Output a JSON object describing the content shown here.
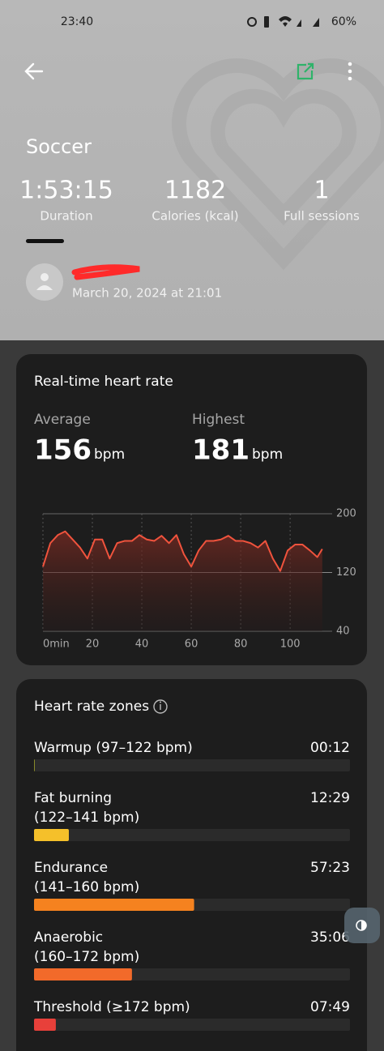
{
  "status_bar": {
    "time": "23:40",
    "battery": "60%"
  },
  "header": {
    "title": "Soccer"
  },
  "stats": [
    {
      "value": "1:53:15",
      "label": "Duration"
    },
    {
      "value": "1182",
      "label": "Calories (kcal)"
    },
    {
      "value": "1",
      "label": "Full sessions"
    }
  ],
  "session": {
    "date": "March 20, 2024 at 21:01"
  },
  "heart_rate": {
    "average": {
      "label": "Average",
      "value": 156,
      "unit": "bpm"
    },
    "highest": {
      "label": "Highest",
      "value": 181,
      "unit": "bpm"
    }
  },
  "chart_data": {
    "type": "line",
    "title": "Real-time heart rate",
    "x": [
      0,
      3,
      6,
      9,
      12,
      15,
      18,
      21,
      24,
      27,
      30,
      33,
      36,
      39,
      42,
      45,
      48,
      51,
      54,
      57,
      60,
      63,
      66,
      69,
      72,
      75,
      78,
      81,
      84,
      87,
      90,
      93,
      96,
      99,
      102,
      105,
      108,
      111,
      113
    ],
    "series": [
      {
        "color": "#f0533d",
        "values": [
          128,
          160,
          171,
          176,
          165,
          154,
          139,
          165,
          165,
          139,
          160,
          163,
          163,
          171,
          165,
          163,
          170,
          160,
          171,
          145,
          128,
          150,
          163,
          163,
          165,
          170,
          163,
          163,
          160,
          154,
          163,
          139,
          122,
          150,
          158,
          158,
          150,
          141,
          152
        ]
      }
    ],
    "xlim": [
      0,
      117
    ],
    "ylim": [
      40,
      200
    ],
    "xticks": [
      {
        "value": 0,
        "label": "0min"
      },
      20,
      40,
      60,
      80,
      100
    ],
    "yticks": [
      40,
      120,
      200
    ]
  },
  "zones": {
    "title": "Heart rate zones",
    "items": [
      {
        "lines": [
          "Warmup (97–122 bpm)"
        ],
        "time": "00:12",
        "color": "#b3b52a"
      },
      {
        "lines": [
          "Fat burning",
          "(122–141 bpm)"
        ],
        "time": "12:29",
        "color": "#f5c02a"
      },
      {
        "lines": [
          "Endurance",
          "(141–160 bpm)"
        ],
        "time": "57:23",
        "color": "#f5821f"
      },
      {
        "lines": [
          "Anaerobic",
          "(160–172 bpm)"
        ],
        "time": "35:06",
        "color": "#f26a2a"
      },
      {
        "lines": [
          "Threshold (≥172 bpm)"
        ],
        "time": "07:49",
        "color": "#e8403a"
      }
    ]
  }
}
